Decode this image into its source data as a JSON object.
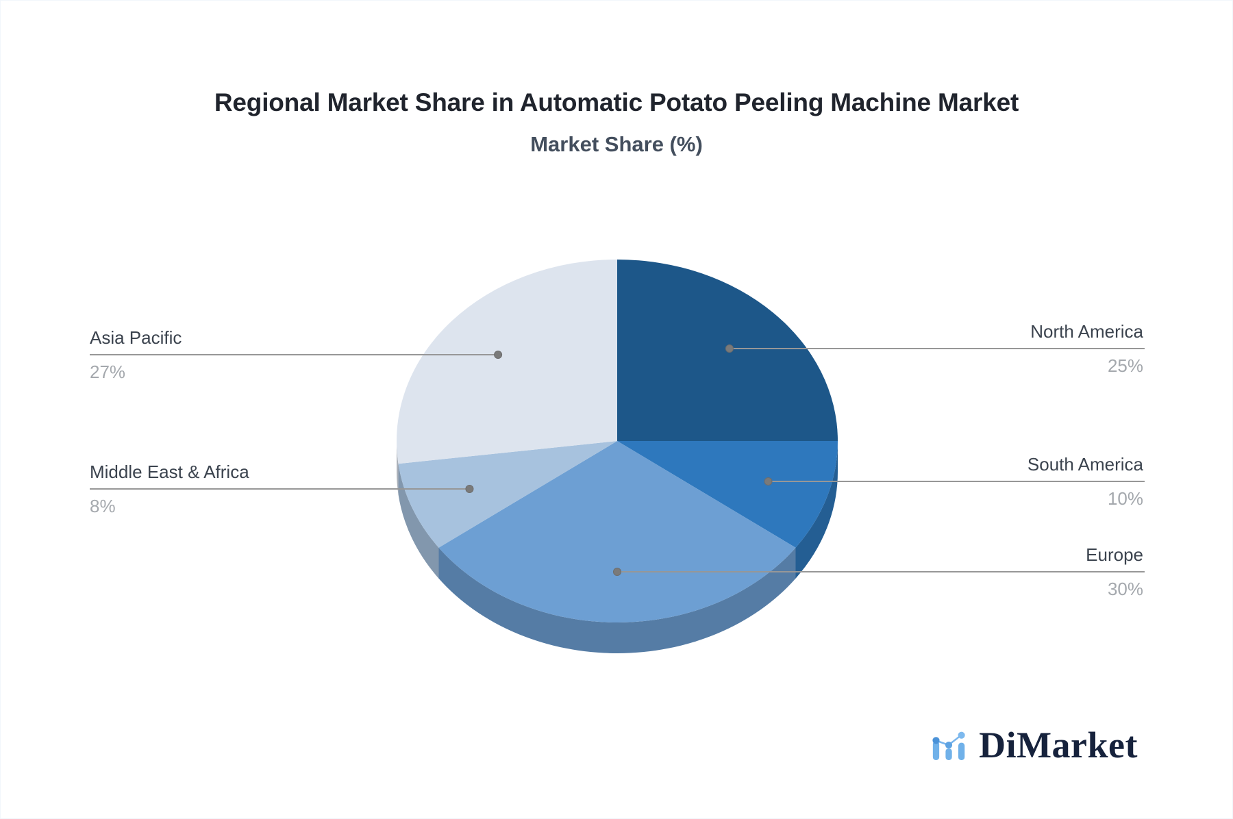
{
  "header": {
    "title": "Regional Market Share in Automatic Potato Peeling Machine Market",
    "subtitle": "Market Share (%)"
  },
  "brand": {
    "name": "DiMarket"
  },
  "chart_data": {
    "type": "pie",
    "style": "3d",
    "title": "Regional Market Share in Automatic Potato Peeling Machine Market",
    "subtitle": "Market Share (%)",
    "unit": "%",
    "total": 100,
    "start_angle_deg": 0,
    "direction": "clockwise",
    "legend": "none",
    "slices": [
      {
        "label": "North America",
        "value": 25,
        "percent_label": "25%",
        "color": "#1d5789",
        "label_side": "right"
      },
      {
        "label": "South America",
        "value": 10,
        "percent_label": "10%",
        "color": "#2e78bd",
        "label_side": "right"
      },
      {
        "label": "Europe",
        "value": 30,
        "percent_label": "30%",
        "color": "#6d9fd3",
        "label_side": "right"
      },
      {
        "label": "Middle East & Africa",
        "value": 8,
        "percent_label": "8%",
        "color": "#a7c2de",
        "label_side": "left"
      },
      {
        "label": "Asia Pacific",
        "value": 27,
        "percent_label": "27%",
        "color": "#dde4ee",
        "label_side": "left"
      }
    ],
    "label_text_color": "#3b434e",
    "percent_text_color": "#a4a8ad",
    "leader_line_color": "#979797",
    "leader_dot_color": "#7a7a7a"
  }
}
